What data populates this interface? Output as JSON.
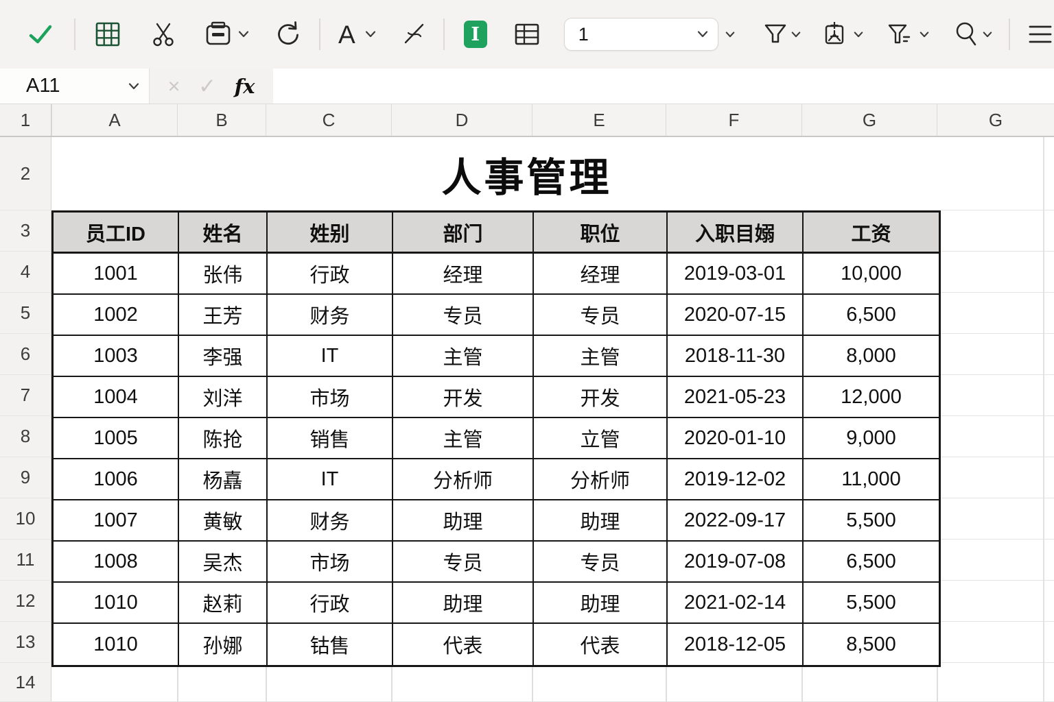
{
  "toolbar": {
    "font_button_label": "A",
    "italic_badge_label": "I",
    "selection_combobox_value": "1",
    "accent_green": "#1ea25d",
    "dark_green": "#1b5434",
    "icons": [
      "check-icon",
      "grid-icon",
      "scissors-icon",
      "printer-icon",
      "redo-icon",
      "font-icon",
      "clear-format-icon",
      "italic-badge",
      "table-borders-icon",
      "filter-icon",
      "seal-icon",
      "filter-sort-icon",
      "search-icon",
      "menu-icon"
    ]
  },
  "formula_bar": {
    "cell_reference": "A11",
    "cancel_glyph": "×",
    "confirm_glyph": "✓",
    "function_label": "fx",
    "formula_value": ""
  },
  "sheet": {
    "corner_row_number": "1",
    "column_letters": [
      "A",
      "B",
      "C",
      "D",
      "E",
      "F",
      "G",
      "G"
    ],
    "row_numbers": [
      "2",
      "3",
      "4",
      "5",
      "6",
      "7",
      "8",
      "9",
      "10",
      "11",
      "12",
      "13",
      "14"
    ],
    "title": "人事管理",
    "table": {
      "headers": [
        "员工ID",
        "姓名",
        "姓别",
        "部门",
        "职位",
        "入职目嫋",
        "工资"
      ],
      "rows": [
        [
          "1001",
          "张伟",
          "行政",
          "经理",
          "经理",
          "2019-03-01",
          "10,000"
        ],
        [
          "1002",
          "王芳",
          "财务",
          "专员",
          "专员",
          "2020-07-15",
          "6,500"
        ],
        [
          "1003",
          "李强",
          "IT",
          "主管",
          "主管",
          "2018-11-30",
          "8,000"
        ],
        [
          "1004",
          "刘洋",
          "市场",
          "开发",
          "开发",
          "2021-05-23",
          "12,000"
        ],
        [
          "1005",
          "陈抢",
          "销售",
          "主管",
          "立管",
          "2020-01-10",
          "9,000"
        ],
        [
          "1006",
          "杨嚞",
          "IT",
          "分析师",
          "分析师",
          "2019-12-02",
          "11,000"
        ],
        [
          "1007",
          "黄敏",
          "财务",
          "助理",
          "助理",
          "2022-09-17",
          "5,500"
        ],
        [
          "1008",
          "吴杰",
          "市场",
          "专员",
          "专员",
          "2019-07-08",
          "6,500"
        ],
        [
          "1010",
          "赵莉",
          "行政",
          "助理",
          "助理",
          "2021-02-14",
          "5,500"
        ],
        [
          "1010",
          "孙娜",
          "钴售",
          "代表",
          "代表",
          "2018-12-05",
          "8,500"
        ]
      ]
    }
  }
}
